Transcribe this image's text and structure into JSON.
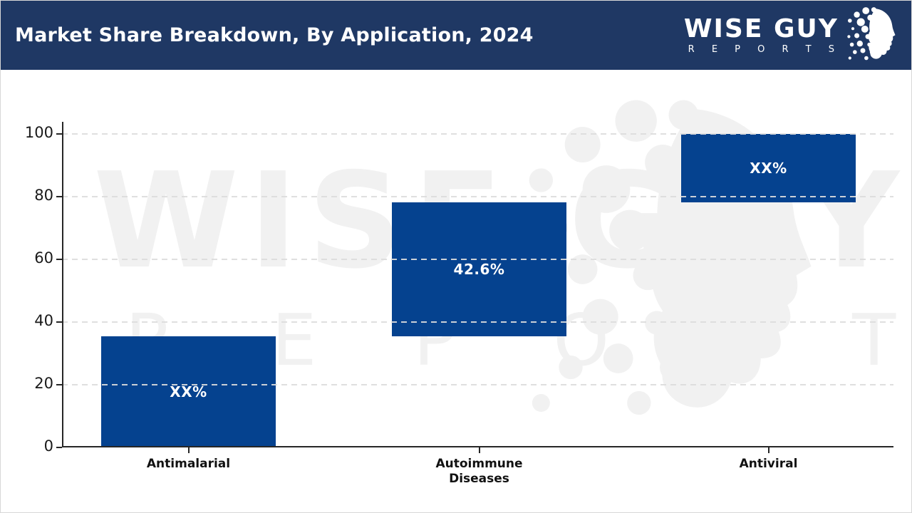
{
  "header": {
    "title": "Market Share Breakdown, By Application, 2024",
    "background_color": "#1f3864",
    "logo": {
      "primary": "WISE GUY",
      "secondary": "R E P O R T S"
    }
  },
  "watermark": {
    "primary": "WISE GUY",
    "secondary": "R E P O R T S"
  },
  "chart_data": {
    "type": "bar",
    "variant": "floating-waterfall",
    "title": "Market Share Breakdown, By Application, 2024",
    "categories": [
      "Antimalarial",
      "Autoimmune Diseases",
      "Antiviral"
    ],
    "series": [
      {
        "name": "Market Share (%)",
        "segments": [
          {
            "category": "Antimalarial",
            "start": 0,
            "end": 35.5,
            "value_estimate": 35.5,
            "label": "XX%"
          },
          {
            "category": "Autoimmune Diseases",
            "start": 35.5,
            "end": 78.1,
            "value_estimate": 42.6,
            "label": "42.6%"
          },
          {
            "category": "Antiviral",
            "start": 78.1,
            "end": 100,
            "value_estimate": 21.9,
            "label": "XX%"
          }
        ]
      }
    ],
    "xlabel": "",
    "ylabel": "",
    "ylim": [
      0,
      100
    ],
    "yticks": [
      0,
      20,
      40,
      60,
      80,
      100
    ],
    "grid": "horizontal-dashed-over-bars",
    "legend": "none",
    "bar_color": "#05428f",
    "bar_label_color": "#ffffff"
  }
}
